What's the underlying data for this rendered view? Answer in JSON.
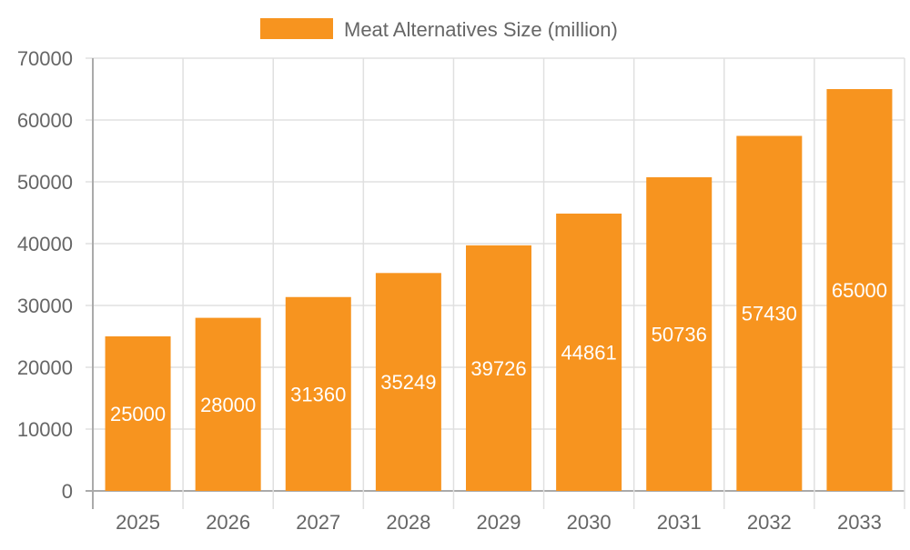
{
  "chart_data": {
    "type": "bar",
    "title": "",
    "xlabel": "",
    "ylabel": "",
    "categories": [
      "2025",
      "2026",
      "2027",
      "2028",
      "2029",
      "2030",
      "2031",
      "2032",
      "2033"
    ],
    "series": [
      {
        "name": "Meat Alternatives Size (million)",
        "values": [
          25000,
          28000,
          31360,
          35249,
          39726,
          44861,
          50736,
          57430,
          65000
        ],
        "color": "#f7941f"
      }
    ],
    "ylim": [
      0,
      70000
    ],
    "yticks": [
      0,
      10000,
      20000,
      30000,
      40000,
      50000,
      60000,
      70000
    ],
    "grid": true,
    "legend": "top-center",
    "data_labels": true,
    "colors": {
      "grid": "#e0e0e0",
      "axis": "#aaaaaa",
      "tick_text": "#666666",
      "data_label": "#ffffff"
    }
  }
}
